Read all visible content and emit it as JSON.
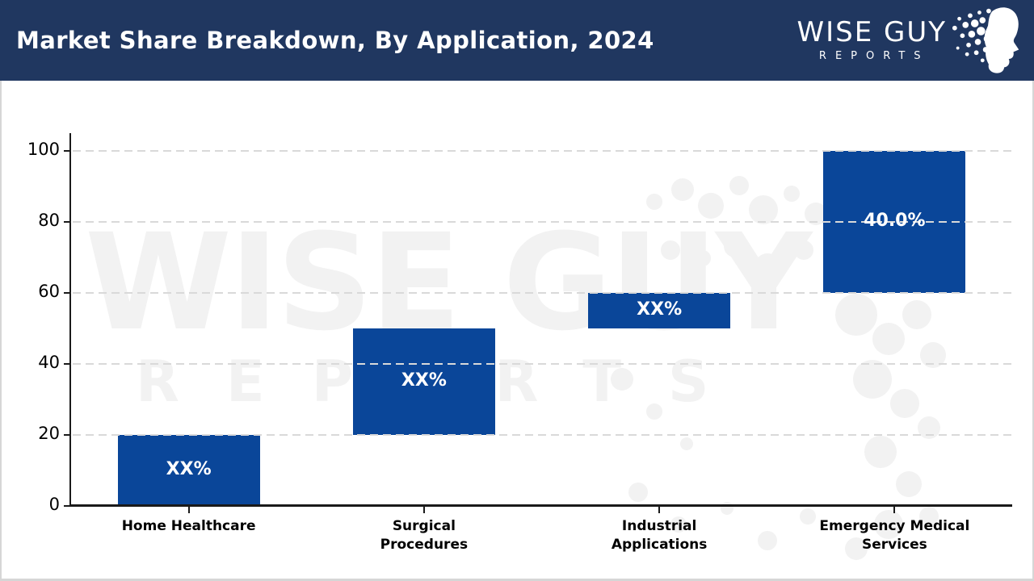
{
  "header": {
    "title": "Market Share Breakdown, By Application, 2024",
    "bg_color": "#203760"
  },
  "logo": {
    "line1": "WISE GUY",
    "line2": "REPORTS"
  },
  "watermark": {
    "line1": "WISE GUY",
    "line2": "REPORTS"
  },
  "chart_data": {
    "type": "bar",
    "subtype": "waterfall-floating-bars",
    "title": "Market Share Breakdown, By Application, 2024",
    "categories": [
      "Home Healthcare",
      "Surgical\nProcedures",
      "Industrial\nApplications",
      "Emergency Medical\nServices"
    ],
    "segments": [
      {
        "category": "Home Healthcare",
        "start": 0,
        "end": 20,
        "label": "XX%"
      },
      {
        "category": "Surgical Procedures",
        "start": 20,
        "end": 50,
        "label": "XX%"
      },
      {
        "category": "Industrial Applications",
        "start": 50,
        "end": 60,
        "label": "XX%"
      },
      {
        "category": "Emergency Medical Services",
        "start": 60,
        "end": 100,
        "label": "40.0%"
      }
    ],
    "xlabel": "",
    "ylabel": "",
    "ylim": [
      0,
      100
    ],
    "yticks": [
      0,
      20,
      40,
      60,
      80,
      100
    ],
    "grid": "horizontal dashed, drawn over bars",
    "legend": "none",
    "bar_color": "#0a4699",
    "bar_label_color": "#ffffff",
    "grid_color": "#d9d9d9",
    "axis_color": "#1a1a1a"
  },
  "colors": {
    "header_bg": "#203760",
    "bar": "#0a4699",
    "grid": "#d9d9d9",
    "axis": "#1a1a1a",
    "watermark": "#f2f2f2",
    "frame_border": "#d6d6d6"
  }
}
